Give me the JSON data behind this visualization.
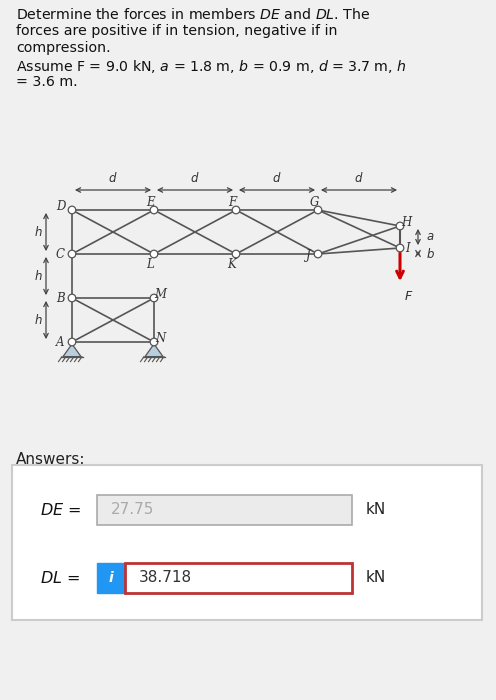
{
  "title_lines": [
    "Determine the forces in members $\\it{DE}$ and $\\it{DL}$. The",
    "forces are positive if in tension, negative if in",
    "compression.",
    "Assume F = 9.0 kN, $a$ = 1.8 m, $b$ = 0.9 m, $d$ = 3.7 m, $h$",
    "= 3.6 m."
  ],
  "answers_label": "Answers:",
  "DE_label": "DE =",
  "DE_value": "27.75",
  "DE_unit": "kN",
  "DL_label": "DL =",
  "DL_value": "38.718",
  "DL_unit": "kN",
  "bg_color": "#f0f0f0",
  "truss_line_color": "#555555",
  "node_fill": "#ffffff",
  "node_edge": "#555555",
  "arrow_color": "#cc0000",
  "dim_color": "#444444",
  "label_color": "#333333",
  "ans_box_bg": "#ffffff",
  "ans_box_border": "#cccccc",
  "de_box_bg": "#ebebeb",
  "de_box_border": "#aaaaaa",
  "de_text_color": "#aaaaaa",
  "dl_box_border": "#bb3333",
  "dl_text_color": "#333333",
  "info_btn_color": "#2196F3",
  "info_text_color": "#ffffff"
}
